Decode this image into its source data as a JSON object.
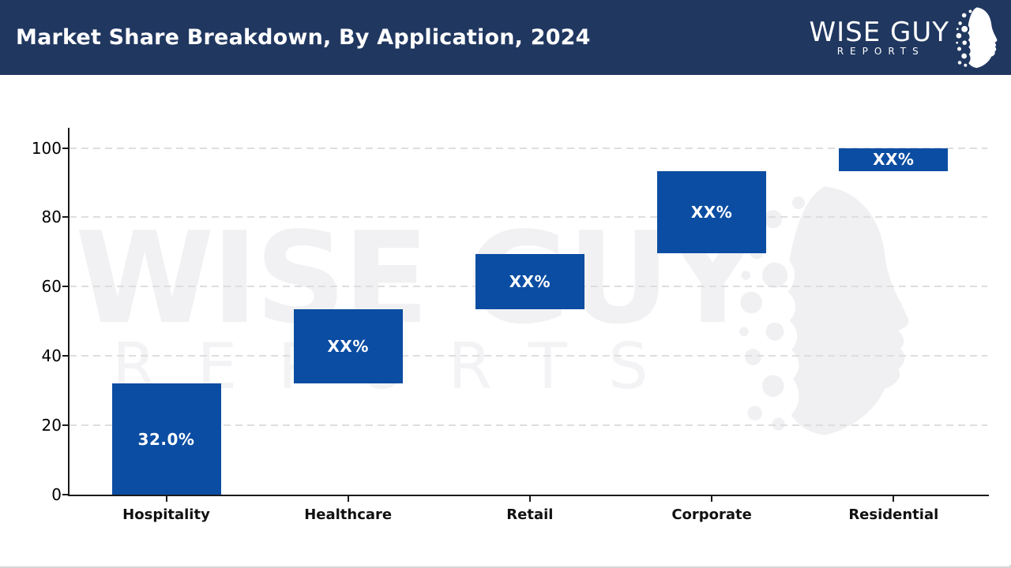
{
  "header": {
    "title": "Market Share Breakdown, By Application, 2024",
    "logo": {
      "name": "WISE GUY",
      "tagline": "REPORTS"
    }
  },
  "watermark": {
    "line1": "WISE GUY",
    "line2": "REPORTS"
  },
  "chart_data": {
    "type": "bar",
    "variant": "waterfall",
    "title": "Market Share Breakdown, By Application, 2024",
    "categories": [
      "Hospitality",
      "Healthcare",
      "Retail",
      "Corporate",
      "Residential"
    ],
    "segments": [
      {
        "category": "Hospitality",
        "start": 0,
        "end": 32,
        "label": "32.0%"
      },
      {
        "category": "Healthcare",
        "start": 32,
        "end": 53.4,
        "label": "XX%"
      },
      {
        "category": "Retail",
        "start": 53.5,
        "end": 69.5,
        "label": "XX%"
      },
      {
        "category": "Corporate",
        "start": 69.6,
        "end": 93.3,
        "label": "XX%"
      },
      {
        "category": "Residential",
        "start": 93.3,
        "end": 100,
        "label": "XX%"
      }
    ],
    "ylim": [
      0,
      100
    ],
    "yticks": [
      0,
      20,
      40,
      60,
      80,
      100
    ],
    "xlabel": "",
    "ylabel": "",
    "grid": "horizontal-dashed",
    "legend": "none",
    "colors": {
      "bar": "#0b4da2",
      "bar_label": "#ffffff",
      "axis": "#1a1a1a",
      "grid": "#dedede",
      "header_bg": "#203760",
      "watermark": "#f1f1f3"
    }
  }
}
